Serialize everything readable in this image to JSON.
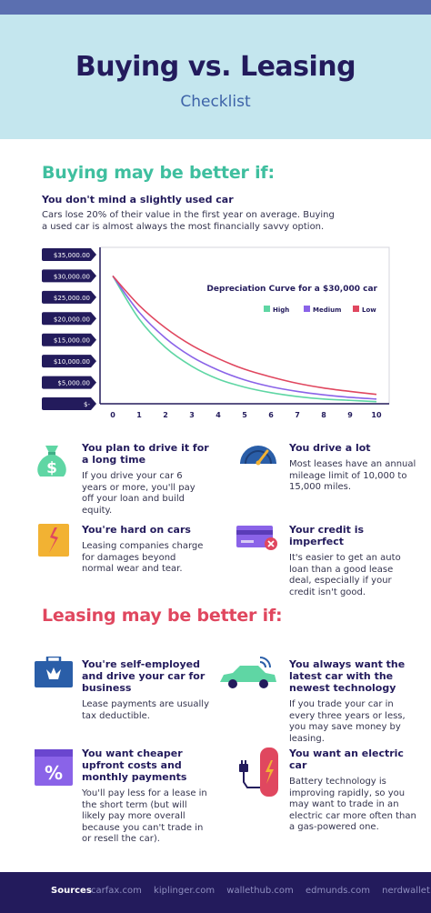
{
  "header": {
    "title": "Buying vs. Leasing",
    "subtitle": "Checklist"
  },
  "buying": {
    "title": "Buying may be better if:",
    "used_car": {
      "heading": "You don't mind a slightly used car",
      "text": "Cars lose 20% of their value in the first year on average. Buying a used car is almost always the most financially savvy option."
    },
    "items": [
      {
        "title": "You plan to drive it for a long time",
        "text": "If you drive your car 6 years or more, you'll pay off your loan and build equity.",
        "icon": "money-bag-icon"
      },
      {
        "title": "You drive a lot",
        "text": "Most leases have an annual mileage limit of 10,000 to 15,000 miles.",
        "icon": "speedometer-icon"
      },
      {
        "title": "You're hard on cars",
        "text": "Leasing companies charge for damages beyond normal wear and tear.",
        "icon": "broken-glass-icon"
      },
      {
        "title": "Your credit is imperfect",
        "text": "It's easier to get an auto loan than a good lease deal, especially if your credit isn't good.",
        "icon": "credit-card-declined-icon"
      }
    ]
  },
  "leasing": {
    "title": "Leasing may be better if:",
    "items": [
      {
        "title": "You're self-employed and drive your car for business",
        "text": "Lease payments are usually tax deductible.",
        "icon": "briefcase-icon"
      },
      {
        "title": "You always want the latest car with the newest technology",
        "text": "If you trade your car in every three years or less, you may save money by leasing.",
        "icon": "connected-car-icon"
      },
      {
        "title": "You want cheaper upfront costs and monthly payments",
        "text": "You'll pay less for a lease in the short term (but will likely pay more overall because you can't trade in or resell the car).",
        "icon": "percent-icon"
      },
      {
        "title": "You want an electric car",
        "text": "Battery technology is improving rapidly, so you may want to trade in an electric car more often than a gas-powered one.",
        "icon": "charging-station-icon"
      }
    ]
  },
  "chart_data": {
    "type": "line",
    "title": "Depreciation Curve for a $30,000 car",
    "x": [
      0,
      1,
      2,
      3,
      4,
      5,
      6,
      7,
      8,
      9,
      10
    ],
    "y_tick_labels": [
      "$35,000.00",
      "$30,000.00",
      "$25,000.00",
      "$20,000.00",
      "$15,000.00",
      "$10,000.00",
      "$5,000.00",
      "$-"
    ],
    "ylim": [
      0,
      35000
    ],
    "xlim": [
      0,
      10
    ],
    "legend_position": "top-right",
    "series": [
      {
        "name": "High",
        "color": "#5fd6a4",
        "values": [
          30000,
          19900,
          13200,
          8800,
          5800,
          3900,
          2600,
          1700,
          1100,
          800,
          500
        ]
      },
      {
        "name": "Medium",
        "color": "#8a63e8",
        "values": [
          30000,
          21500,
          15400,
          11000,
          7900,
          5600,
          4000,
          2900,
          2100,
          1500,
          1100
        ]
      },
      {
        "name": "Low",
        "color": "#e0475f",
        "values": [
          30000,
          23100,
          17800,
          13700,
          10600,
          8100,
          6300,
          4800,
          3700,
          2900,
          2200
        ]
      }
    ]
  },
  "sources": {
    "label": "Sources",
    "links": [
      "carfax.com",
      "kiplinger.com",
      "wallethub.com",
      "edmunds.com",
      "nerdwallet.com"
    ]
  }
}
